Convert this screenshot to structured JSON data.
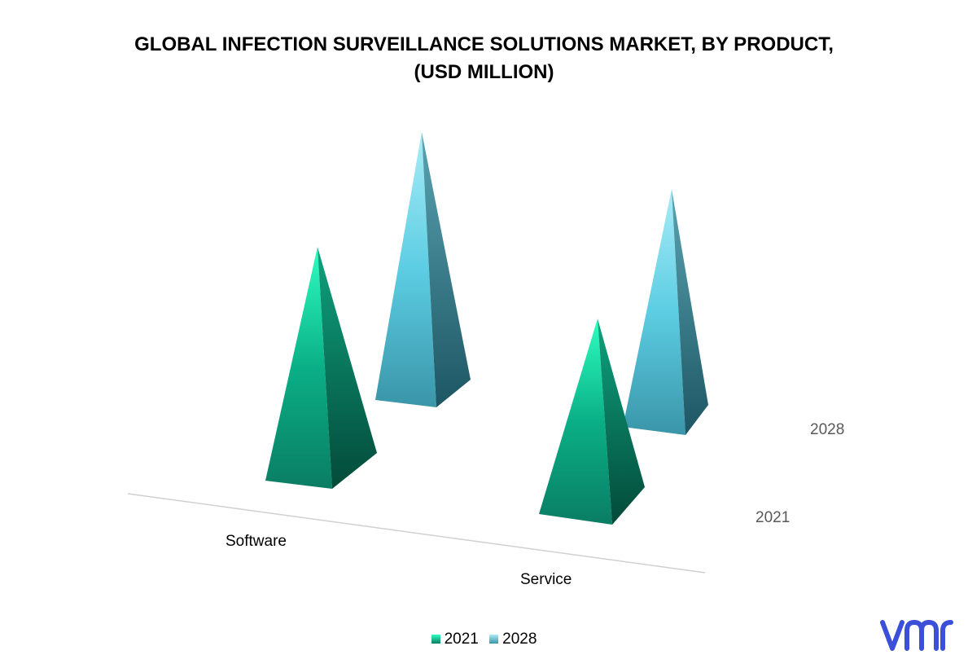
{
  "chart_data": {
    "type": "bar",
    "bar_shape": "3d-pyramid",
    "title_lines": [
      "GLOBAL INFECTION SURVEILLANCE SOLUTIONS MARKET, BY PRODUCT,",
      "(USD MILLION)"
    ],
    "categories": [
      "Software",
      "Service"
    ],
    "series": [
      {
        "name": "2021",
        "values": [
          297,
          253
        ],
        "color": "#0a9e7e"
      },
      {
        "name": "2028",
        "values": [
          338,
          302
        ],
        "color": "#45a9bd"
      }
    ],
    "depth_labels": [
      "2021",
      "2028"
    ],
    "legend_position": "bottom",
    "grid": false
  },
  "brand": {
    "logo_text": "vmr",
    "color": "#3b4fd8"
  }
}
